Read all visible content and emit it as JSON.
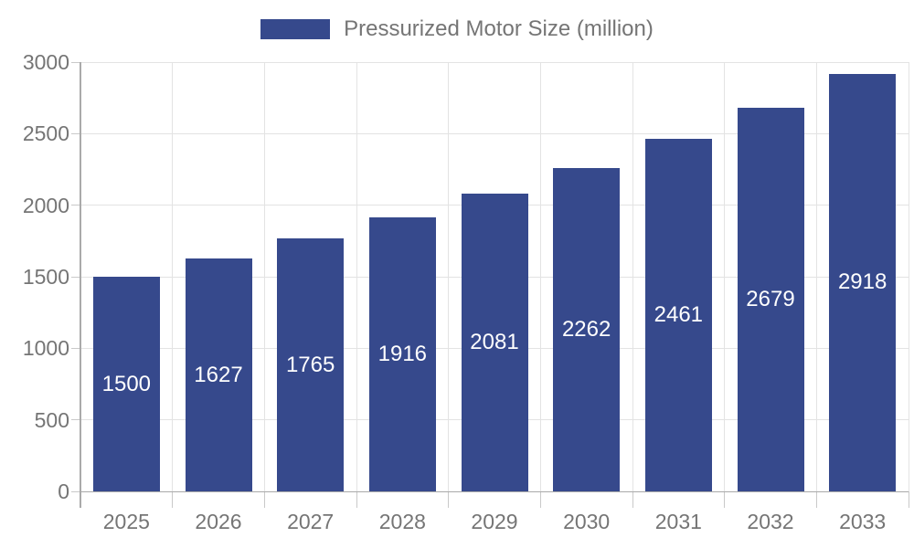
{
  "chart_data": {
    "type": "bar",
    "title": "Pressurized Motor Size (million)",
    "legend": [
      "Pressurized Motor Size (million)"
    ],
    "legend_position": "top-center",
    "categories": [
      "2025",
      "2026",
      "2027",
      "2028",
      "2029",
      "2030",
      "2031",
      "2032",
      "2033"
    ],
    "series": [
      {
        "name": "Pressurized Motor Size (million)",
        "values": [
          1500,
          1627,
          1765,
          1916,
          2081,
          2262,
          2461,
          2679,
          2918
        ]
      }
    ],
    "xlabel": "",
    "ylabel": "",
    "ylim": [
      0,
      3000
    ],
    "ytick_step": 500,
    "yticks": [
      0,
      500,
      1000,
      1500,
      2000,
      2500,
      3000
    ],
    "grid": true,
    "bar_label_position": "inside-center",
    "colors": {
      "bar": "#36498C",
      "bar_label": "#FFFFFF",
      "grid_line": "#E3E3E3",
      "axis_line": "#AAAAAA",
      "tick_line": "#C9C9C9",
      "tick_label": "#757575",
      "legend_text": "#757575"
    }
  }
}
